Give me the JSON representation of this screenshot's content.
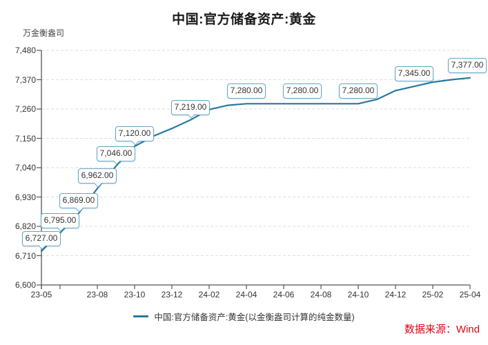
{
  "title": "中国:官方储备资产:黄金",
  "unit_label": "万金衡盎司",
  "legend": {
    "label": "中国:官方储备资产:黄金(以金衡盎司计算的纯金数量)"
  },
  "source": "数据来源：Wind",
  "colors": {
    "line": "#2678a0",
    "callout_border": "#64a6c6",
    "grid": "#dedede",
    "axis": "#555555",
    "text": "#333333",
    "source_red": "#e60012"
  },
  "chart_data": {
    "type": "line",
    "title": "中国:官方储备资产:黄金",
    "ylabel": "万金衡盎司",
    "xlabel": "",
    "ylim": [
      6600,
      7480
    ],
    "ytick_step": 110,
    "grid": "horizontal dashed",
    "legend_position": "bottom-center",
    "x": [
      "23-05",
      "23-06",
      "23-07",
      "23-08",
      "23-09",
      "23-10",
      "23-11",
      "23-12",
      "24-01",
      "24-02",
      "24-03",
      "24-04",
      "24-05",
      "24-06",
      "24-07",
      "24-08",
      "24-09",
      "24-10",
      "24-11",
      "24-12",
      "25-01",
      "25-02",
      "25-03",
      "25-04"
    ],
    "values": [
      6727,
      6795,
      6869,
      6962,
      7046,
      7120,
      7158,
      7187,
      7219,
      7258,
      7274,
      7280,
      7280,
      7280,
      7280,
      7280,
      7280,
      7280,
      7296,
      7329,
      7345,
      7361,
      7370,
      7377
    ],
    "ytick_values": [
      7480,
      7370,
      7260,
      7150,
      7040,
      6930,
      6820,
      6710,
      6600
    ],
    "ytick_labels": [
      "7,480",
      "7,370",
      "7,260",
      "7,150",
      "7,040",
      "6,930",
      "6,820",
      "6,710",
      "6,600"
    ],
    "xtick_positions": [
      0,
      1,
      3,
      5,
      7,
      9,
      11,
      13,
      15,
      17,
      19,
      21,
      23
    ],
    "xtick_label_positions": [
      0,
      3,
      5,
      7,
      9,
      11,
      13,
      15,
      17,
      19,
      21,
      23
    ],
    "labeled_points": [
      {
        "i": 0,
        "text": "6,727.00",
        "tail": true
      },
      {
        "i": 1,
        "text": "6,795.00",
        "tail": true
      },
      {
        "i": 2,
        "text": "6,869.00",
        "tail": true
      },
      {
        "i": 3,
        "text": "6,962.00",
        "tail": true
      },
      {
        "i": 4,
        "text": "7,046.00",
        "tail": true
      },
      {
        "i": 5,
        "text": "7,120.00",
        "tail": true
      },
      {
        "i": 8,
        "text": "7,219.00",
        "tail": true
      },
      {
        "i": 11,
        "text": "7,280.00",
        "tail": false
      },
      {
        "i": 14,
        "text": "7,280.00",
        "tail": false
      },
      {
        "i": 17,
        "text": "7,280.00",
        "tail": false
      },
      {
        "i": 20,
        "text": "7,345.00",
        "tail": false
      },
      {
        "i": 23,
        "text": "7,377.00",
        "tail": false
      }
    ]
  }
}
